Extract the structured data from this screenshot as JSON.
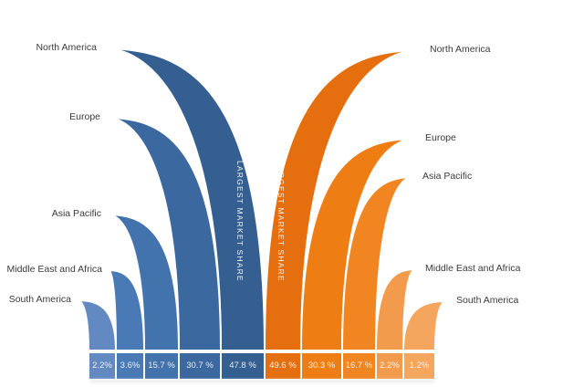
{
  "chart_data": {
    "type": "funnel",
    "variant": "mirrored-fan-market-share",
    "title": "",
    "categories": [
      "North America",
      "Europe",
      "Asia Pacific",
      "Middle East and Africa",
      "South America"
    ],
    "series": [
      {
        "name": "left",
        "theme": "blue",
        "column_label": "LARGEST MARKET SHARE",
        "values": [
          47.8,
          30.7,
          15.7,
          3.6,
          2.2
        ],
        "value_labels": [
          "47.8 %",
          "30.7 %",
          "15.7 %",
          "3.6%",
          "2.2%"
        ],
        "colors": [
          "#345F90",
          "#3A689F",
          "#4373AD",
          "#4A7AB6",
          "#6289C2"
        ]
      },
      {
        "name": "right",
        "theme": "orange",
        "column_label": "LARGEST MARKET SHARE",
        "values": [
          49.6,
          30.3,
          16.7,
          2.2,
          1.2
        ],
        "value_labels": [
          "49.6 %",
          "30.3 %",
          "16.7 %",
          "2.2%",
          "1.2%"
        ],
        "colors": [
          "#E56F0E",
          "#EE7D13",
          "#F08521",
          "#F29B4D",
          "#F4A55E"
        ]
      }
    ],
    "legend_position": "none",
    "grid": false,
    "bottom_band_order_left_to_right": [
      "2.2%",
      "3.6%",
      "15.7 %",
      "30.7 %",
      "47.8 %",
      "49.6 %",
      "30.3 %",
      "16.7 %",
      "2.2%",
      "1.2%"
    ]
  },
  "left_labels": [
    "North America",
    "Europe",
    "Asia Pacific",
    "Middle East and Africa",
    "South America"
  ],
  "right_labels": [
    "North America",
    "Europe",
    "Asia Pacific",
    "Middle East and Africa",
    "South America"
  ],
  "colors": {
    "background": "#ffffff",
    "separator": "#ffffff",
    "label_text": "#3b3b3b",
    "band_text": "#ffffff"
  }
}
